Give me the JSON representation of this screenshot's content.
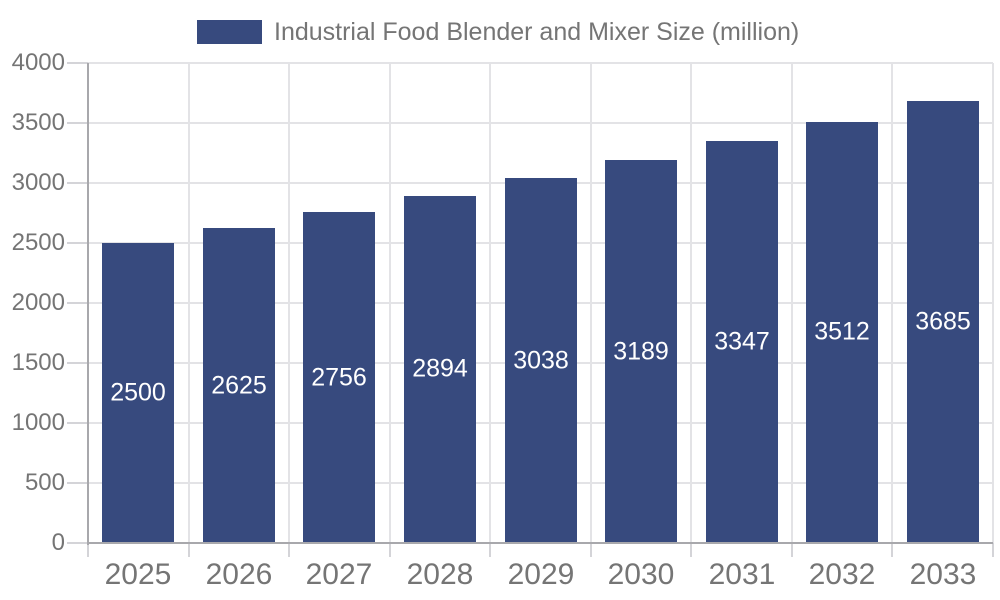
{
  "chart_data": {
    "type": "bar",
    "title": "Industrial Food Blender and Mixer Size (million)",
    "categories": [
      "2025",
      "2026",
      "2027",
      "2028",
      "2029",
      "2030",
      "2031",
      "2032",
      "2033"
    ],
    "values": [
      2500,
      2625,
      2756,
      2894,
      3038,
      3189,
      3347,
      3512,
      3685
    ],
    "xlabel": "",
    "ylabel": "",
    "ylim": [
      0,
      4000
    ],
    "ytick_step": 500,
    "ytick_labels": [
      "0",
      "500",
      "1000",
      "1500",
      "2000",
      "2500",
      "3000",
      "3500",
      "4000"
    ],
    "grid": true,
    "legend_position": "top",
    "value_labels_shown": true,
    "colors": {
      "bar": "#374A7E",
      "bar_value_text": "#ffffff",
      "axis_text": "#757575",
      "legend_text": "#757575",
      "grid_line": "#e3e3e6",
      "tick_line": "#d4d4d8",
      "axis_line": "#a8a8ac",
      "background": "#ffffff"
    }
  }
}
